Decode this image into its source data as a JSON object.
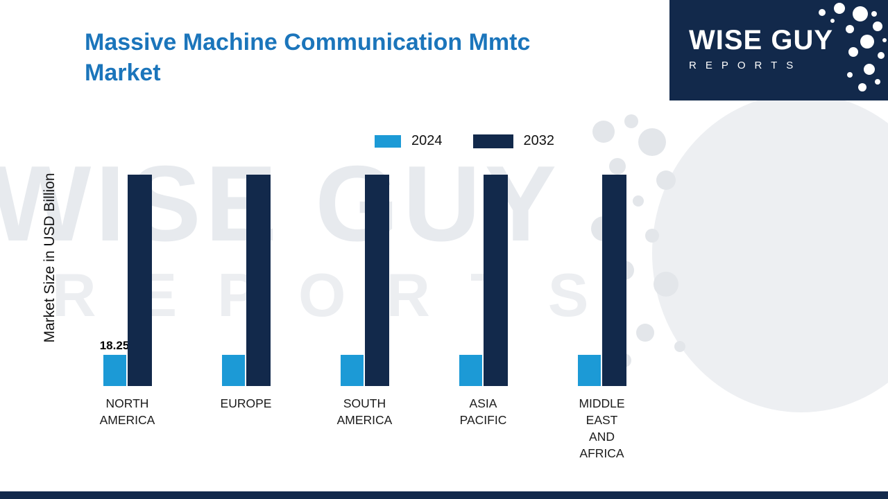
{
  "page": {
    "title": "Massive Machine Communication Mmtc\nMarket"
  },
  "logo": {
    "line1": "WISE GUY",
    "line2": "REPORTS"
  },
  "watermark": {
    "line1": "WISE GUY",
    "line2": "REPORTS"
  },
  "colors": {
    "title_blue": "#1b75bb",
    "accent_light_blue": "#1c9ad6",
    "navy": "#12294b",
    "watermark_gray": "#e7eaee"
  },
  "chart_data": {
    "type": "bar",
    "title": "Massive Machine Communication Mmtc Market",
    "xlabel": "",
    "ylabel": "Market Size in USD Billion",
    "categories": [
      "NORTH\nAMERICA",
      "EUROPE",
      "SOUTH\nAMERICA",
      "ASIA\nPACIFIC",
      "MIDDLE\nEAST\nAND\nAFRICA"
    ],
    "series": [
      {
        "name": "2024",
        "color": "#1c9ad6",
        "values": [
          18.25,
          18.25,
          18.25,
          18.25,
          18.25
        ]
      },
      {
        "name": "2032",
        "color": "#12294b",
        "values": [
          125,
          125,
          125,
          125,
          125
        ]
      }
    ],
    "ylim": [
      0,
      125
    ],
    "grid": false,
    "legend_position": "top",
    "data_labels": [
      {
        "series": "2024",
        "category_index": 0,
        "text": "18.25"
      }
    ]
  }
}
